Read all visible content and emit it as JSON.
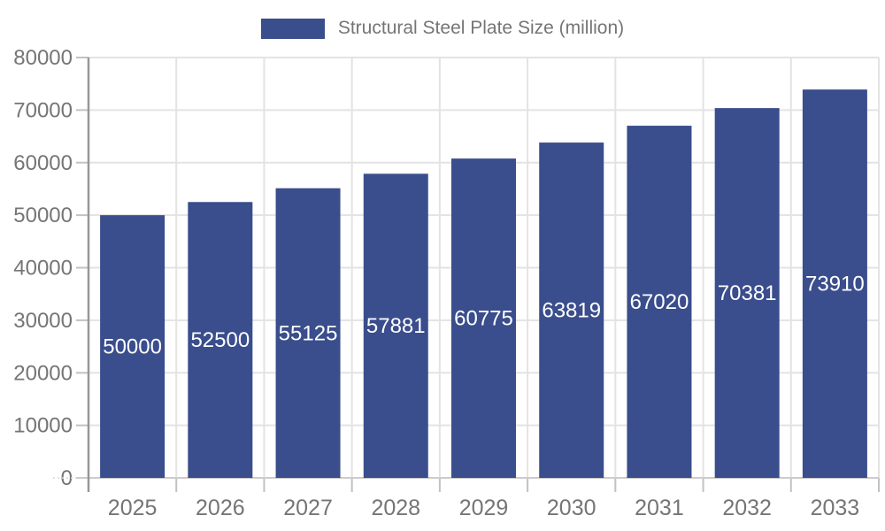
{
  "legend": {
    "label": "Structural Steel Plate Size (million)",
    "swatch_color": "#3A4D8C"
  },
  "chart_data": {
    "type": "bar",
    "title": "Structural Steel Plate Size (million)",
    "categories": [
      "2025",
      "2026",
      "2027",
      "2028",
      "2029",
      "2030",
      "2031",
      "2032",
      "2033"
    ],
    "values": [
      50000,
      52500,
      55125,
      57881,
      60775,
      63819,
      67020,
      70381,
      73910
    ],
    "bar_labels": [
      "50000",
      "52500",
      "55125",
      "57881",
      "60775",
      "63819",
      "67020",
      "70381",
      "73910"
    ],
    "xlabel": "",
    "ylabel": "",
    "ylim": [
      0,
      80000
    ],
    "ytick_step": 10000,
    "ytick_labels": [
      "0",
      "10000",
      "20000",
      "30000",
      "40000",
      "50000",
      "60000",
      "70000",
      "80000"
    ],
    "grid": true,
    "legend_position": "top-center",
    "colors": {
      "bar": "#3A4D8C",
      "bar_label": "#ffffff",
      "axis_text": "#757575",
      "gridline": "#e3e3e3",
      "y_axis_line": "#979797",
      "x_axis_line": "#cccccc",
      "tick": "#c2c2c2",
      "background": "#ffffff"
    }
  }
}
